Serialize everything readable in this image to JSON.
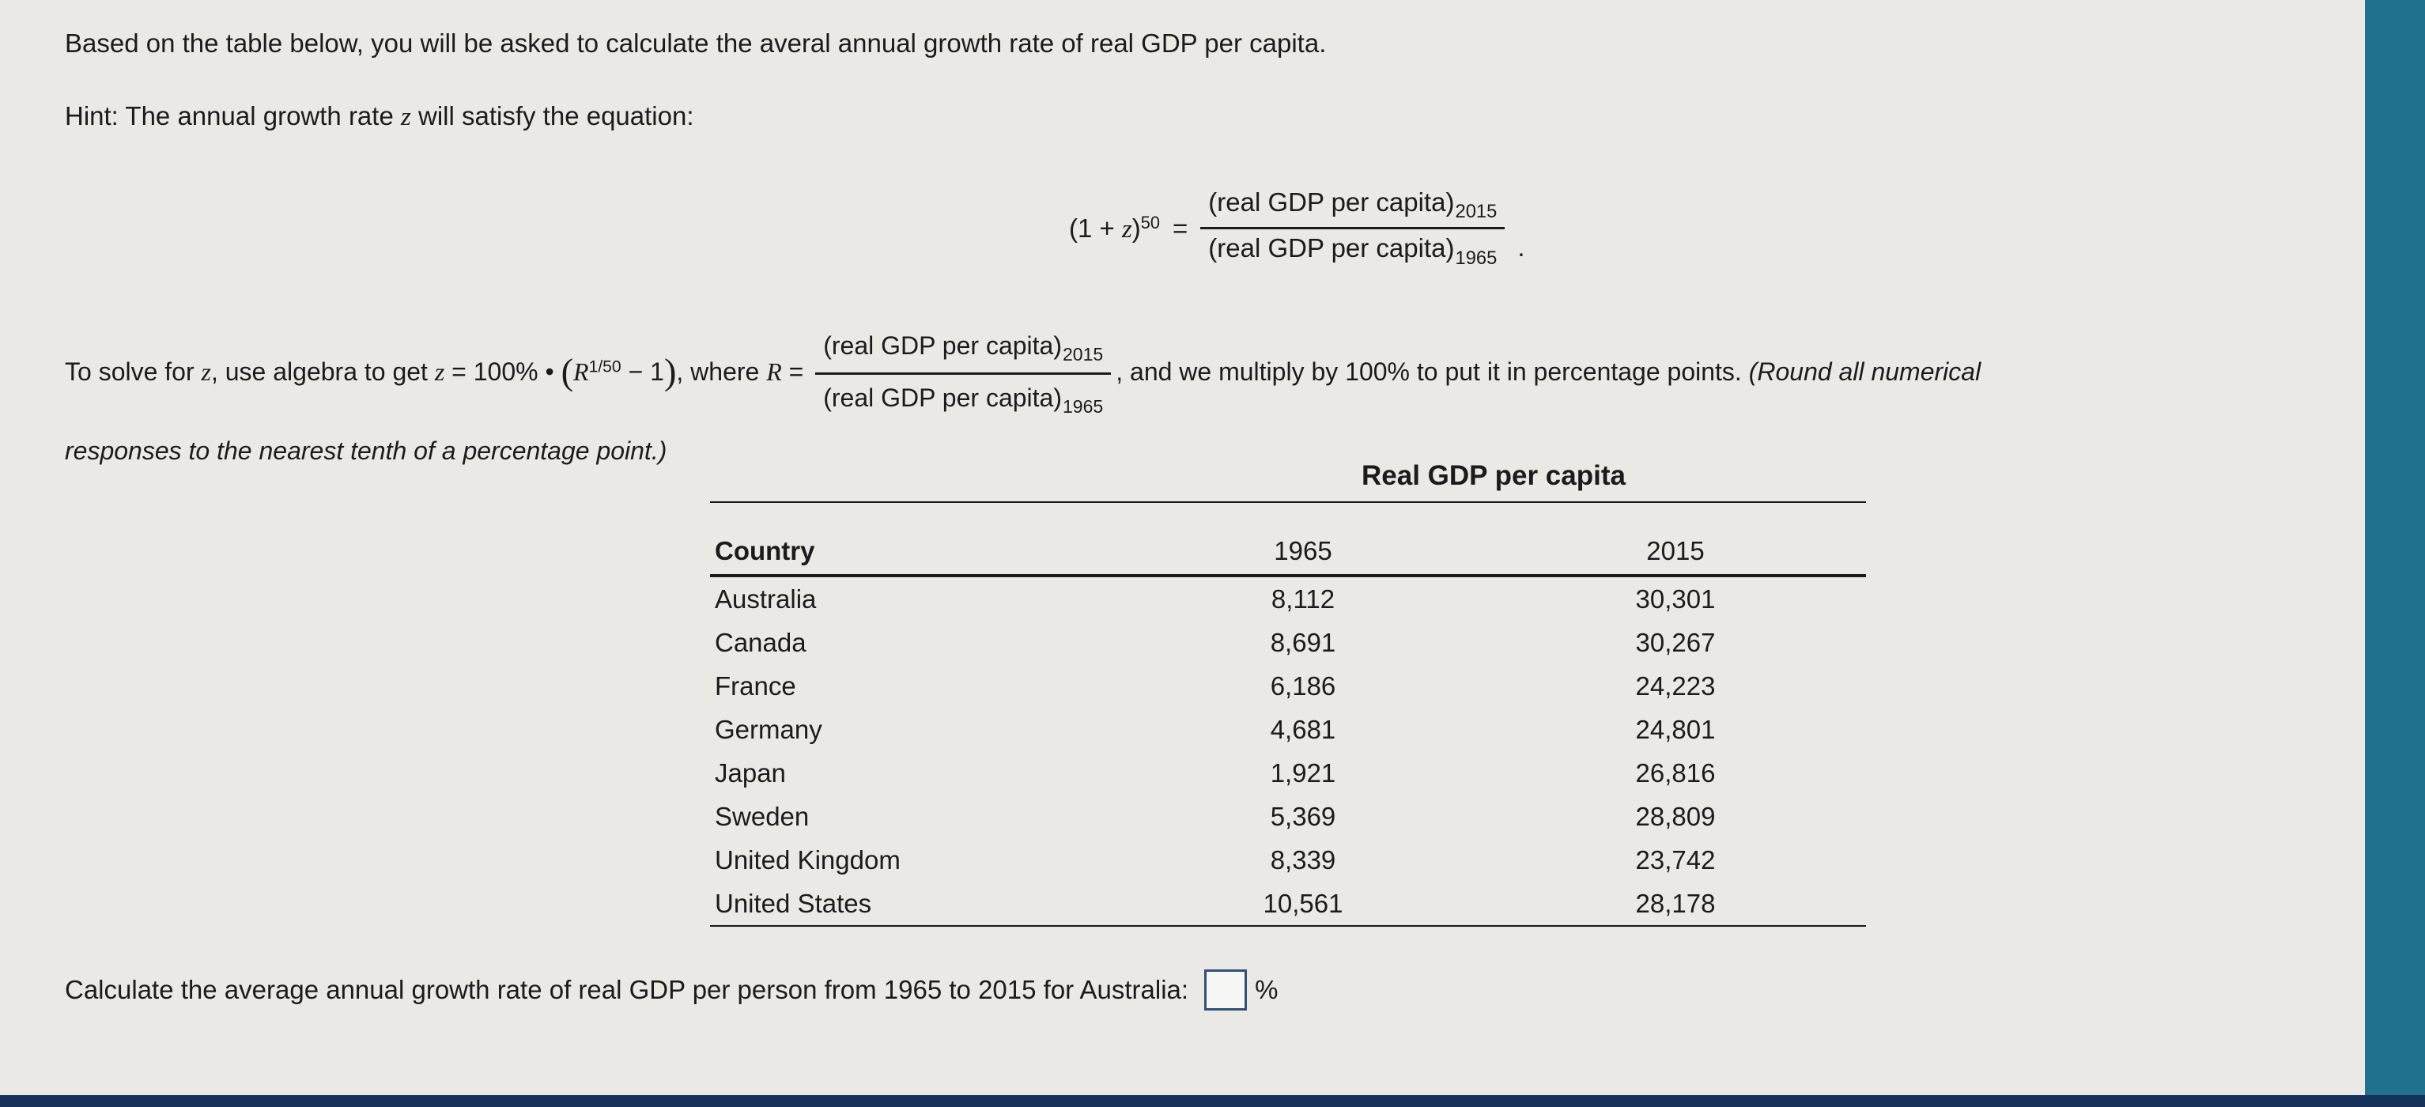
{
  "colors": {
    "page_background": "#eae9e5",
    "text": "#1b1b1b",
    "right_bar": "#21708e",
    "bottom_bar": "#16325a",
    "table_rule": "#1b1b1b",
    "answer_box_border": "#30517a"
  },
  "intro": {
    "line1": "Based on the table below, you will be asked to calculate the averal annual growth rate of real GDP per capita.",
    "hint_prefix": "Hint: The annual growth rate ",
    "hint_var": "z",
    "hint_suffix": " will satisfy the equation:"
  },
  "equation": {
    "lhs_open": "(1 + ",
    "lhs_var": "z",
    "lhs_close": ")",
    "lhs_exp": "50",
    "equals": "=",
    "num_text": "(real GDP per capita)",
    "num_sub": "2015",
    "den_text": "(real GDP per capita)",
    "den_sub": "1965",
    "period": "."
  },
  "solve": {
    "s1": "To solve for ",
    "z": "z",
    "s2": ", use algebra to get ",
    "s3": " = 100% • ",
    "open_paren": "(",
    "R": "R",
    "R_exp": "1/50",
    "minus_one": " − 1",
    "close_paren": ")",
    "s4": ", where ",
    "s5": " = ",
    "s6": ", and we multiply by 100% to put it in percentage points. ",
    "round_line1": "(Round all numerical",
    "round_line2": "responses to the nearest tenth of a percentage point.)"
  },
  "table": {
    "title": "Real GDP per capita",
    "header": {
      "country": "Country",
      "col1965": "1965",
      "col2015": "2015"
    },
    "rows": [
      {
        "country": "Australia",
        "v1965": "8,112",
        "v2015": "30,301"
      },
      {
        "country": "Canada",
        "v1965": "8,691",
        "v2015": "30,267"
      },
      {
        "country": "France",
        "v1965": "6,186",
        "v2015": "24,223"
      },
      {
        "country": "Germany",
        "v1965": "4,681",
        "v2015": "24,801"
      },
      {
        "country": "Japan",
        "v1965": "1,921",
        "v2015": "26,816"
      },
      {
        "country": "Sweden",
        "v1965": "5,369",
        "v2015": "28,809"
      },
      {
        "country": "United Kingdom",
        "v1965": "8,339",
        "v2015": "23,742"
      },
      {
        "country": "United States",
        "v1965": "10,561",
        "v2015": "28,178"
      }
    ]
  },
  "question": {
    "label": "Calculate the average annual growth rate of real GDP per person from 1965 to 2015 for Australia:",
    "answer_value": "",
    "unit": "%"
  }
}
